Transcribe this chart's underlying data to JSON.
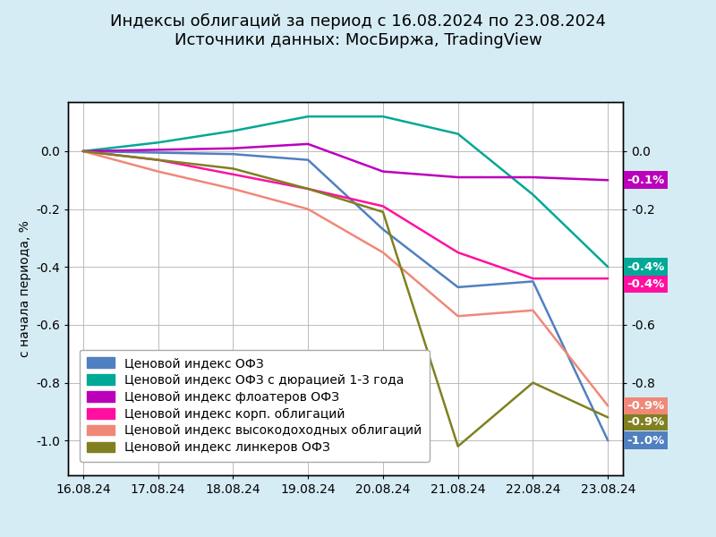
{
  "title_line1": "Индексы облигаций за период с 16.08.2024 по 23.08.2024",
  "title_line2": "Источники данных: МосБиржа, TradingView",
  "ylabel": "с начала периода, %",
  "background": "#d6ecf5",
  "plot_background": "#ffffff",
  "x_labels": [
    "16.08.24",
    "17.08.24",
    "18.08.24",
    "19.08.24",
    "20.08.24",
    "21.08.24",
    "22.08.24",
    "23.08.24"
  ],
  "series": [
    {
      "label": "Ценовой индекс ОФЗ",
      "color": "#5080C0",
      "values": [
        0.0,
        -0.005,
        -0.01,
        -0.03,
        -0.27,
        -0.47,
        -0.45,
        -1.0
      ]
    },
    {
      "label": "Ценовой индекс ОФЗ с дюрацией 1-3 года",
      "color": "#00A896",
      "values": [
        0.0,
        0.03,
        0.07,
        0.12,
        0.12,
        0.06,
        -0.15,
        -0.4
      ]
    },
    {
      "label": "Ценовой индекс флоатеров ОФЗ",
      "color": "#BB00BB",
      "values": [
        0.0,
        0.005,
        0.01,
        0.025,
        -0.07,
        -0.09,
        -0.09,
        -0.1
      ]
    },
    {
      "label": "Ценовой индекс корп. облигаций",
      "color": "#FF10A0",
      "values": [
        0.0,
        -0.03,
        -0.08,
        -0.13,
        -0.19,
        -0.35,
        -0.44,
        -0.44
      ]
    },
    {
      "label": "Ценовой индекс высокодоходных облигаций",
      "color": "#F08878",
      "values": [
        0.0,
        -0.07,
        -0.13,
        -0.2,
        -0.35,
        -0.57,
        -0.55,
        -0.88
      ]
    },
    {
      "label": "Ценовой индекс линкеров ОФЗ",
      "color": "#808020",
      "values": [
        0.0,
        -0.03,
        -0.06,
        -0.13,
        -0.21,
        -1.02,
        -0.8,
        -0.92
      ]
    }
  ],
  "end_labels": [
    {
      "text": "-0.1%",
      "color": "#BB00BB",
      "y": -0.1
    },
    {
      "text": "-0.4%",
      "color": "#00A896",
      "y": -0.4
    },
    {
      "text": "-0.4%",
      "color": "#FF10A0",
      "y": -0.46
    },
    {
      "text": "-0.9%",
      "color": "#808020",
      "y": -0.935
    },
    {
      "text": "-0.9%",
      "color": "#F08878",
      "y": -0.88
    },
    {
      "text": "-1.0%",
      "color": "#5080C0",
      "y": -1.0
    }
  ],
  "right_yticks": [
    0.0,
    -0.2,
    -0.4,
    -0.6,
    -0.8
  ],
  "ylim": [
    -1.12,
    0.17
  ],
  "yticks": [
    0.0,
    -0.2,
    -0.4,
    -0.6,
    -0.8,
    -1.0
  ],
  "grid_color": "#bbbbbb",
  "title_fontsize": 13,
  "label_fontsize": 10,
  "tick_fontsize": 10,
  "legend_fontsize": 10
}
